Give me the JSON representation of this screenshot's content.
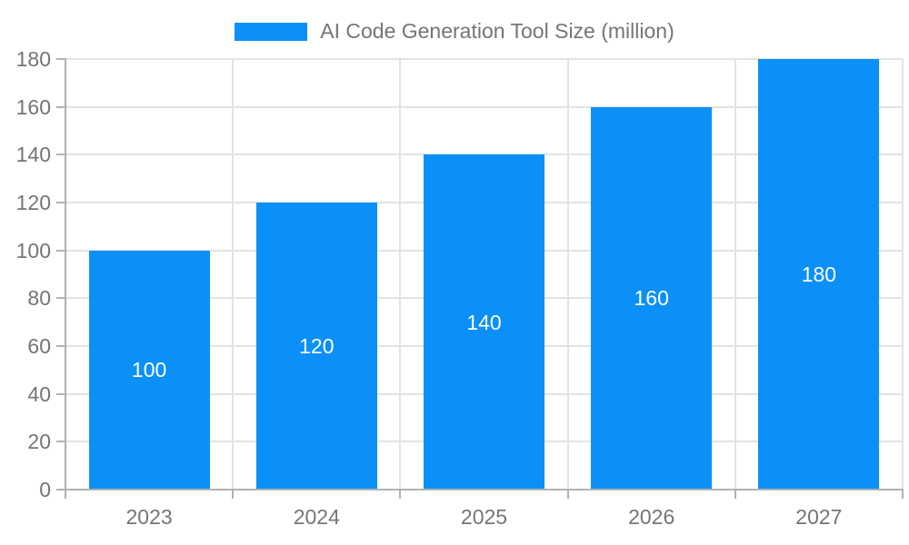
{
  "legend": {
    "label": "AI Code Generation Tool Size (million)"
  },
  "colors": {
    "bar": "#0b90f8",
    "grid": "#e3e3e3",
    "axis": "#b2b2b2",
    "tick_label": "#757575",
    "value_label": "#ffffff",
    "background": "#ffffff"
  },
  "chart_data": {
    "type": "bar",
    "title": "",
    "xlabel": "",
    "ylabel": "",
    "categories": [
      "2023",
      "2024",
      "2025",
      "2026",
      "2027"
    ],
    "values": [
      100,
      120,
      140,
      160,
      180
    ],
    "bar_labels": [
      "100",
      "120",
      "140",
      "160",
      "180"
    ],
    "series": [
      {
        "name": "AI Code Generation Tool Size (million)",
        "values": [
          100,
          120,
          140,
          160,
          180
        ]
      }
    ],
    "ylim": [
      0,
      180
    ],
    "yticks": [
      0,
      20,
      40,
      60,
      80,
      100,
      120,
      140,
      160,
      180
    ],
    "ytick_labels": [
      "0",
      "20",
      "40",
      "60",
      "80",
      "100",
      "120",
      "140",
      "160",
      "180"
    ],
    "grid": true,
    "gridlines": "horizontal-and-vertical",
    "legend_position": "top-center",
    "value_label_position": "inside-center"
  }
}
